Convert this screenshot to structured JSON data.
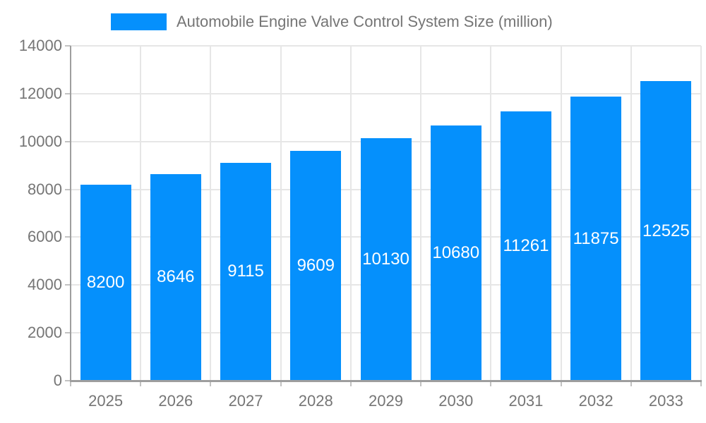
{
  "chart_data": {
    "type": "bar",
    "categories": [
      "2025",
      "2026",
      "2027",
      "2028",
      "2029",
      "2030",
      "2031",
      "2032",
      "2033"
    ],
    "values": [
      8200,
      8646,
      9115,
      9609,
      10130,
      10680,
      11261,
      11875,
      12525
    ],
    "legend": "Automobile Engine Valve Control System Size (million)",
    "title": "",
    "xlabel": "",
    "ylabel": "",
    "ylim": [
      0,
      14000
    ],
    "yticks": [
      0,
      2000,
      4000,
      6000,
      8000,
      10000,
      12000,
      14000
    ],
    "grid": true,
    "legend_position": "top",
    "bar_labels_inside": true,
    "colors": {
      "bar": "#0590fc",
      "axis_text": "#757575",
      "bar_label_text": "#ffffff",
      "gridline": "#e6e6e6",
      "axis_line": "#9e9e9e",
      "tick": "#c2c2c2"
    }
  }
}
